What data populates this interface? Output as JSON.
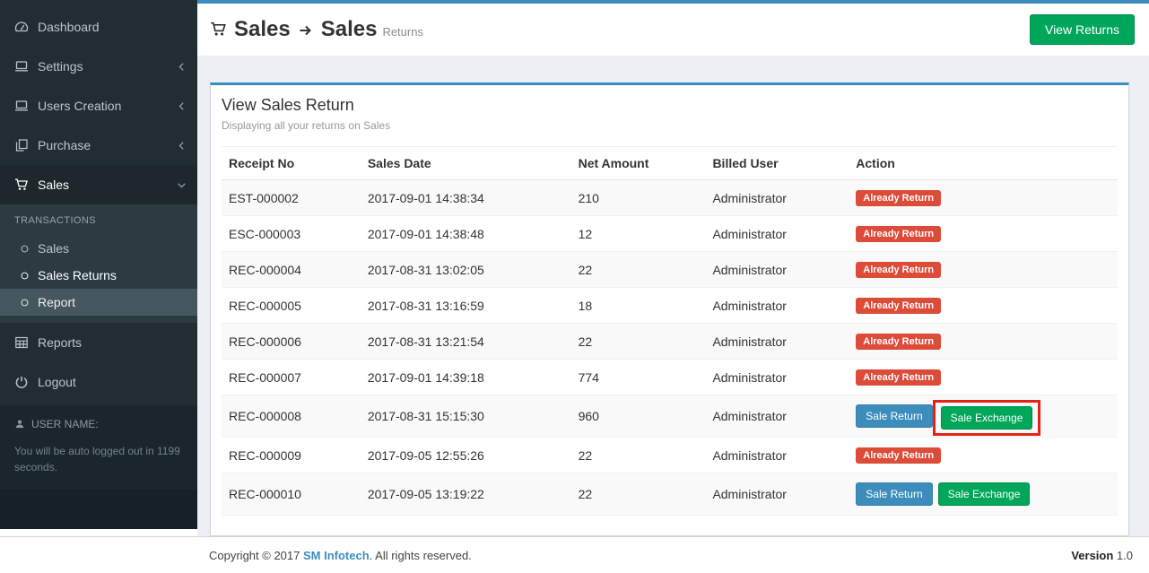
{
  "colors": {
    "accent": "#3c8dbc",
    "success": "#00a65a",
    "danger": "#dd4b39"
  },
  "sidebar": {
    "menu": [
      {
        "label": "Dashboard",
        "icon": "dashboard-icon",
        "chevron": "",
        "active": false
      },
      {
        "label": "Settings",
        "icon": "monitor-icon",
        "chevron": "left",
        "active": false
      },
      {
        "label": "Users Creation",
        "icon": "monitor-icon",
        "chevron": "left",
        "active": false
      },
      {
        "label": "Purchase",
        "icon": "copy-icon",
        "chevron": "left",
        "active": false
      },
      {
        "label": "Sales",
        "icon": "cart-icon",
        "chevron": "down",
        "active": true
      }
    ],
    "section_label": "TRANSACTIONS",
    "submenu": [
      {
        "label": "Sales",
        "state": "normal"
      },
      {
        "label": "Sales Returns",
        "state": "active"
      },
      {
        "label": "Report",
        "state": "hover"
      }
    ],
    "bottom_menu": [
      {
        "label": "Reports",
        "icon": "table-icon",
        "chevron": "",
        "active": false
      },
      {
        "label": "Logout",
        "icon": "power-icon",
        "chevron": "",
        "active": false
      }
    ],
    "user_label": "USER NAME:",
    "auto_logout_note": "You will be auto logged out in 1199 seconds."
  },
  "header": {
    "breadcrumb": {
      "section": "Sales",
      "page": "Sales",
      "sub": "Returns"
    },
    "view_returns_button": "View Returns"
  },
  "panel": {
    "title": "View Sales Return",
    "subtitle": "Displaying all your returns on Sales"
  },
  "table": {
    "columns": [
      "Receipt No",
      "Sales Date",
      "Net Amount",
      "Billed User",
      "Action"
    ],
    "rows": [
      {
        "receipt_no": "EST-000002",
        "sales_date": "2017-09-01 14:38:34",
        "net_amount": "210",
        "billed_user": "Administrator",
        "actions": [
          {
            "label": "Already Return",
            "style": "danger"
          }
        ]
      },
      {
        "receipt_no": "ESC-000003",
        "sales_date": "2017-09-01 14:38:48",
        "net_amount": "12",
        "billed_user": "Administrator",
        "actions": [
          {
            "label": "Already Return",
            "style": "danger"
          }
        ]
      },
      {
        "receipt_no": "REC-000004",
        "sales_date": "2017-08-31 13:02:05",
        "net_amount": "22",
        "billed_user": "Administrator",
        "actions": [
          {
            "label": "Already Return",
            "style": "danger"
          }
        ]
      },
      {
        "receipt_no": "REC-000005",
        "sales_date": "2017-08-31 13:16:59",
        "net_amount": "18",
        "billed_user": "Administrator",
        "actions": [
          {
            "label": "Already Return",
            "style": "danger"
          }
        ]
      },
      {
        "receipt_no": "REC-000006",
        "sales_date": "2017-08-31 13:21:54",
        "net_amount": "22",
        "billed_user": "Administrator",
        "actions": [
          {
            "label": "Already Return",
            "style": "danger"
          }
        ]
      },
      {
        "receipt_no": "REC-000007",
        "sales_date": "2017-09-01 14:39:18",
        "net_amount": "774",
        "billed_user": "Administrator",
        "actions": [
          {
            "label": "Already Return",
            "style": "danger"
          }
        ]
      },
      {
        "receipt_no": "REC-000008",
        "sales_date": "2017-08-31 15:15:30",
        "net_amount": "960",
        "billed_user": "Administrator",
        "actions": [
          {
            "label": "Sale Return",
            "style": "primary"
          },
          {
            "label": "Sale Exchange",
            "style": "success",
            "highlighted": true
          }
        ]
      },
      {
        "receipt_no": "REC-000009",
        "sales_date": "2017-09-05 12:55:26",
        "net_amount": "22",
        "billed_user": "Administrator",
        "actions": [
          {
            "label": "Already Return",
            "style": "danger"
          }
        ]
      },
      {
        "receipt_no": "REC-000010",
        "sales_date": "2017-09-05 13:19:22",
        "net_amount": "22",
        "billed_user": "Administrator",
        "actions": [
          {
            "label": "Sale Return",
            "style": "primary"
          },
          {
            "label": "Sale Exchange",
            "style": "success"
          }
        ]
      }
    ]
  },
  "footer": {
    "copyright_prefix": "Copyright © 2017 ",
    "company": "SM Infotech",
    "copyright_suffix": ". All rights reserved.",
    "version_label": "Version",
    "version_value": "1.0"
  }
}
